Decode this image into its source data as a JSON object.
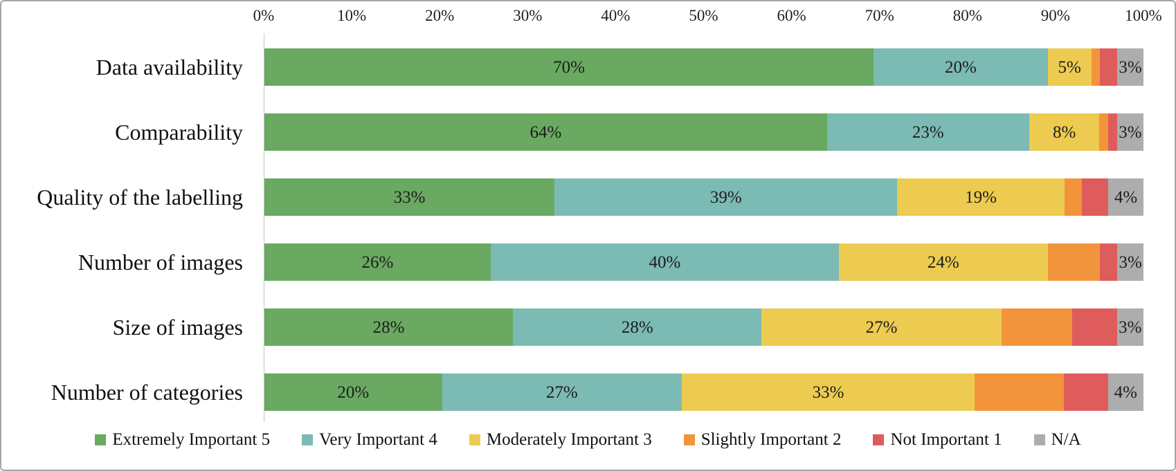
{
  "chart_data": {
    "type": "bar",
    "orientation": "horizontal",
    "stacked": true,
    "unit": "percent",
    "title": "",
    "categories": [
      "Data availability",
      "Comparability",
      "Quality of the labelling",
      "Number of images",
      "Size of images",
      "Number of categories"
    ],
    "series": [
      {
        "name": "Extremely Important 5",
        "color": "#69A961",
        "values": [
          70,
          64,
          33,
          26,
          28,
          20
        ]
      },
      {
        "name": "Very Important 4",
        "color": "#7CBAB4",
        "values": [
          20,
          23,
          39,
          40,
          28,
          27
        ]
      },
      {
        "name": "Moderately Important 3",
        "color": "#EDCB50",
        "values": [
          5,
          8,
          19,
          24,
          27,
          33
        ]
      },
      {
        "name": "Slightly Important 2",
        "color": "#F2943B",
        "values": [
          1,
          1,
          2,
          6,
          8,
          10
        ]
      },
      {
        "name": "Not Important 1",
        "color": "#DF5C5C",
        "values": [
          2,
          1,
          3,
          2,
          5,
          5
        ]
      },
      {
        "name": "N/A",
        "color": "#ADADAD",
        "values": [
          3,
          3,
          4,
          3,
          3,
          4
        ]
      }
    ],
    "segment_labels": [
      [
        "70%",
        "20%",
        "5%",
        "",
        "",
        "3%"
      ],
      [
        "64%",
        "23%",
        "8%",
        "",
        "",
        "3%"
      ],
      [
        "33%",
        "39%",
        "19%",
        "",
        "",
        "4%"
      ],
      [
        "26%",
        "40%",
        "24%",
        "",
        "",
        "3%"
      ],
      [
        "28%",
        "28%",
        "27%",
        "",
        "",
        "3%"
      ],
      [
        "20%",
        "27%",
        "33%",
        "",
        "",
        "4%"
      ]
    ],
    "x_axis": {
      "position": "top",
      "min": 0,
      "max": 100,
      "ticks": [
        "0%",
        "10%",
        "20%",
        "30%",
        "40%",
        "50%",
        "60%",
        "70%",
        "80%",
        "90%",
        "100%"
      ]
    },
    "legend": {
      "position": "bottom",
      "entries": [
        "Extremely Important 5",
        "Very Important 4",
        "Moderately Important 3",
        "Slightly Important 2",
        "Not Important 1",
        "N/A"
      ]
    },
    "grid": false
  }
}
